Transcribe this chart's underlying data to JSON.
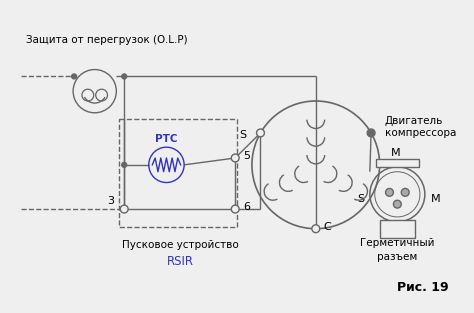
{
  "bg_color": "#efefef",
  "line_color": "#666666",
  "text_color": "#000000",
  "ptc_color": "#3333bb",
  "fig_width": 4.74,
  "fig_height": 3.13,
  "dpi": 100,
  "texts": {
    "olp_title": "Защита от перегрузок (O.L.P)",
    "motor_title1": "Двигатель",
    "motor_title2": "компрессора",
    "start_device1": "Пусковое устройство",
    "start_device2": "RSIR",
    "hermetic1": "Герметичный",
    "hermetic2": "разъем",
    "ptc_label": "PTC",
    "node3": "3",
    "node5": "5",
    "node6": "6",
    "nodeC": "C",
    "nodeS": "S",
    "nodeM_top": "M",
    "nodeM_right": "M",
    "nodeS_conn": "S",
    "fig_label": "Рис. 19"
  }
}
